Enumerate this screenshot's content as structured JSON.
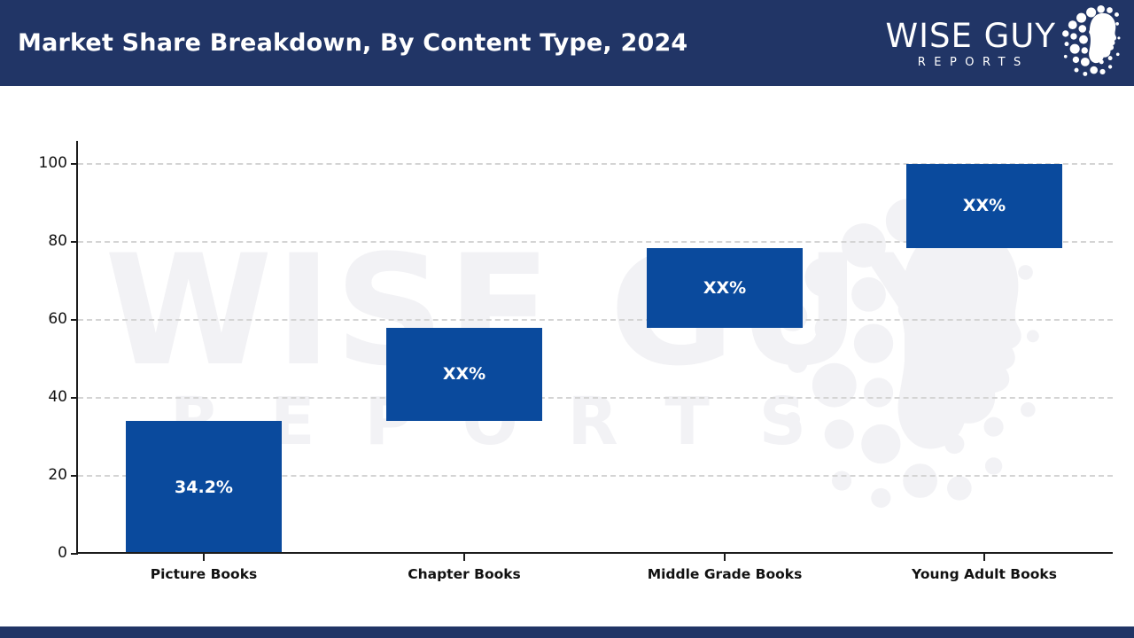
{
  "header": {
    "title": "Market Share Breakdown, By Content Type, 2024",
    "logo": {
      "line1": "WISE GUY",
      "line2": "REPORTS"
    }
  },
  "watermark": {
    "line1": "WISE GUY",
    "line2": "REPORTS"
  },
  "colors": {
    "header_bg": "#213566",
    "footer_bg": "#213566",
    "bar": "#0a4a9d",
    "bar_label": "#ffffff",
    "gridline": "#d4d4d4",
    "axis": "#1c1c1c",
    "watermark": "#f2f2f5"
  },
  "chart_data": {
    "type": "bar",
    "subtype": "waterfall",
    "title": "Market Share Breakdown, By Content Type, 2024",
    "xlabel": "",
    "ylabel": "",
    "categories": [
      "Picture Books",
      "Chapter Books",
      "Middle Grade Books",
      "Young Adult Books"
    ],
    "series": [
      {
        "name": "market_share_percent",
        "segments": [
          {
            "start": 0,
            "end": 34.2,
            "label": "34.2%"
          },
          {
            "start": 34.2,
            "end": 58,
            "label": "XX%"
          },
          {
            "start": 58,
            "end": 78.5,
            "label": "XX%"
          },
          {
            "start": 78.5,
            "end": 100,
            "label": "XX%"
          }
        ]
      }
    ],
    "yticks": [
      0,
      20,
      40,
      60,
      80,
      100
    ],
    "ylim": [
      0,
      106
    ],
    "grid": "horizontal-dashed",
    "legend": "none"
  }
}
